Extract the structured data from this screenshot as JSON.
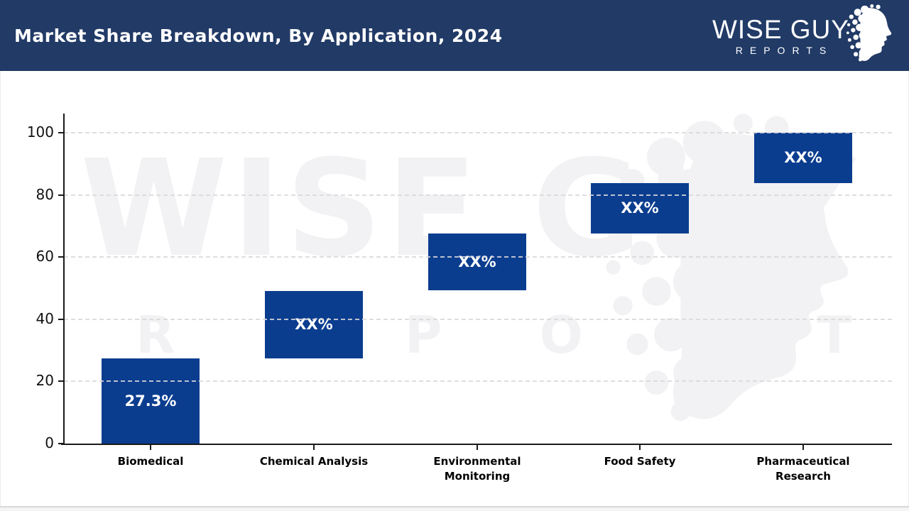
{
  "header": {
    "title": "Market Share Breakdown, By Application, 2024",
    "logo": {
      "wordmark": "WISE GUY",
      "subtext": "REPORTS"
    }
  },
  "watermark": {
    "wordmark": "WISE GUY",
    "subtext": "R E P O R T S"
  },
  "chart_data": {
    "type": "bar",
    "variant": "waterfall-floating-bars",
    "title": "Market Share Breakdown, By Application, 2024",
    "categories": [
      "Biomedical",
      "Chemical Analysis",
      "Environmental Monitoring",
      "Food Safety",
      "Pharmaceutical Research"
    ],
    "segments": [
      {
        "category": "Biomedical",
        "label": "27.3%",
        "start": 0,
        "end": 27.3
      },
      {
        "category": "Chemical Analysis",
        "label": "XX%",
        "start": 27.3,
        "end": 49.2
      },
      {
        "category": "Environmental Monitoring",
        "label": "XX%",
        "start": 49.2,
        "end": 67.5
      },
      {
        "category": "Food Safety",
        "label": "XX%",
        "start": 67.5,
        "end": 83.9
      },
      {
        "category": "Pharmaceutical Research",
        "label": "XX%",
        "start": 83.9,
        "end": 100
      }
    ],
    "yticks": [
      0,
      20,
      40,
      60,
      80,
      100
    ],
    "ylim": [
      0,
      106
    ],
    "xlabel": "",
    "ylabel": "",
    "grid": {
      "horizontal": true,
      "style": "dashed"
    },
    "legend": "none",
    "colors": {
      "bar": "#0B3D8F",
      "bar_label": "#ffffff",
      "grid": "#d9d9d9",
      "axis": "#1a1a1a",
      "tick_label": "#111111",
      "header_bg": "#213A66",
      "watermark": "#f2f2f4"
    }
  }
}
